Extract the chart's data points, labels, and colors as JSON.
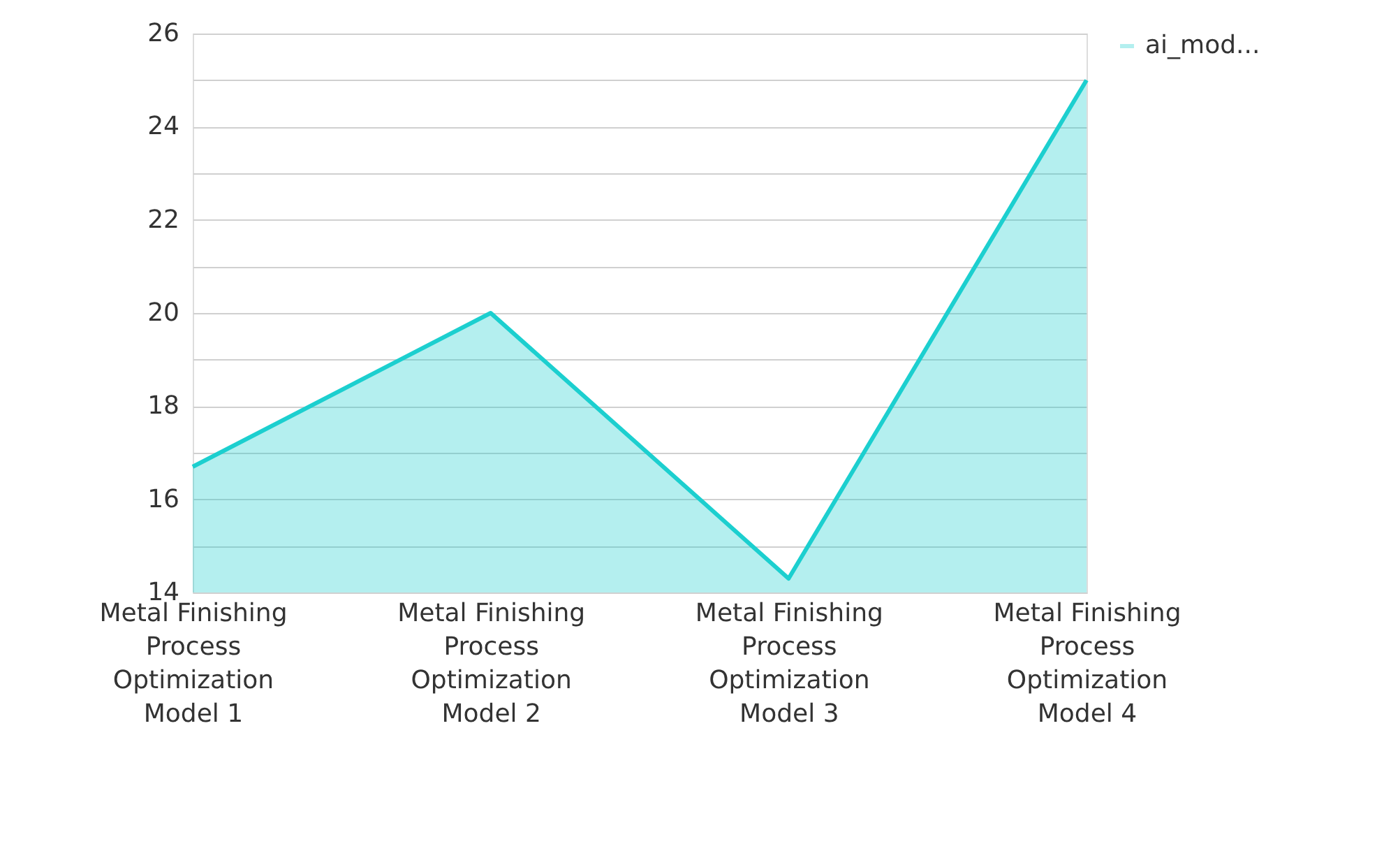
{
  "chart_data": {
    "type": "area",
    "categories": [
      "Metal Finishing Process Optimization Model 1",
      "Metal Finishing Process Optimization Model 2",
      "Metal Finishing Process Optimization Model 3",
      "Metal Finishing Process Optimization Model 4"
    ],
    "series": [
      {
        "name": "ai_mod...",
        "color": "#1ccfcf",
        "values": [
          16.7,
          20,
          14.3,
          25
        ]
      }
    ],
    "ylim": [
      14,
      26
    ],
    "yticks": [
      14,
      {
        "value": 15,
        "label": null
      },
      16,
      {
        "value": 17,
        "label": null
      },
      18,
      {
        "value": 19,
        "label": null
      },
      20,
      {
        "value": 21,
        "label": null
      },
      22,
      {
        "value": 23,
        "label": null
      },
      24,
      {
        "value": 25,
        "label": null
      },
      26
    ],
    "grid": "y",
    "legend": "top right"
  }
}
